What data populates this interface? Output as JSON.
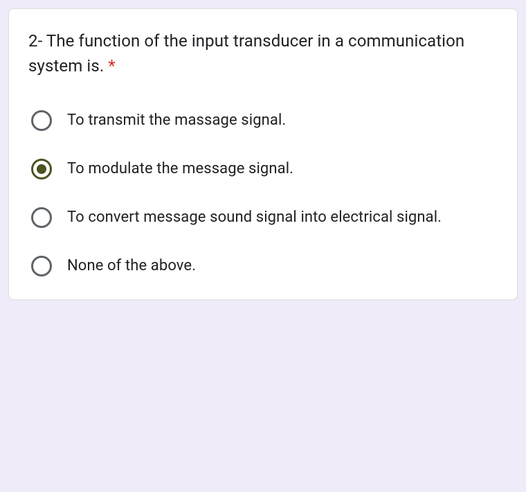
{
  "question": {
    "text": "2- The function of the input transducer in a communication system is. ",
    "required_indicator": "*",
    "required_color": "#d93025"
  },
  "options": [
    {
      "label": "To transmit the massage signal.",
      "selected": false
    },
    {
      "label": "To modulate the message signal.",
      "selected": true
    },
    {
      "label": "To convert message sound signal into electrical signal.",
      "selected": false
    },
    {
      "label": "None of the above.",
      "selected": false
    }
  ],
  "styling": {
    "card_background": "#ffffff",
    "page_background": "#f0ebf8",
    "text_color": "#202124",
    "radio_border_color": "#5f6368",
    "radio_selected_color": "#4b5320",
    "question_fontsize": 24,
    "option_fontsize": 22
  }
}
